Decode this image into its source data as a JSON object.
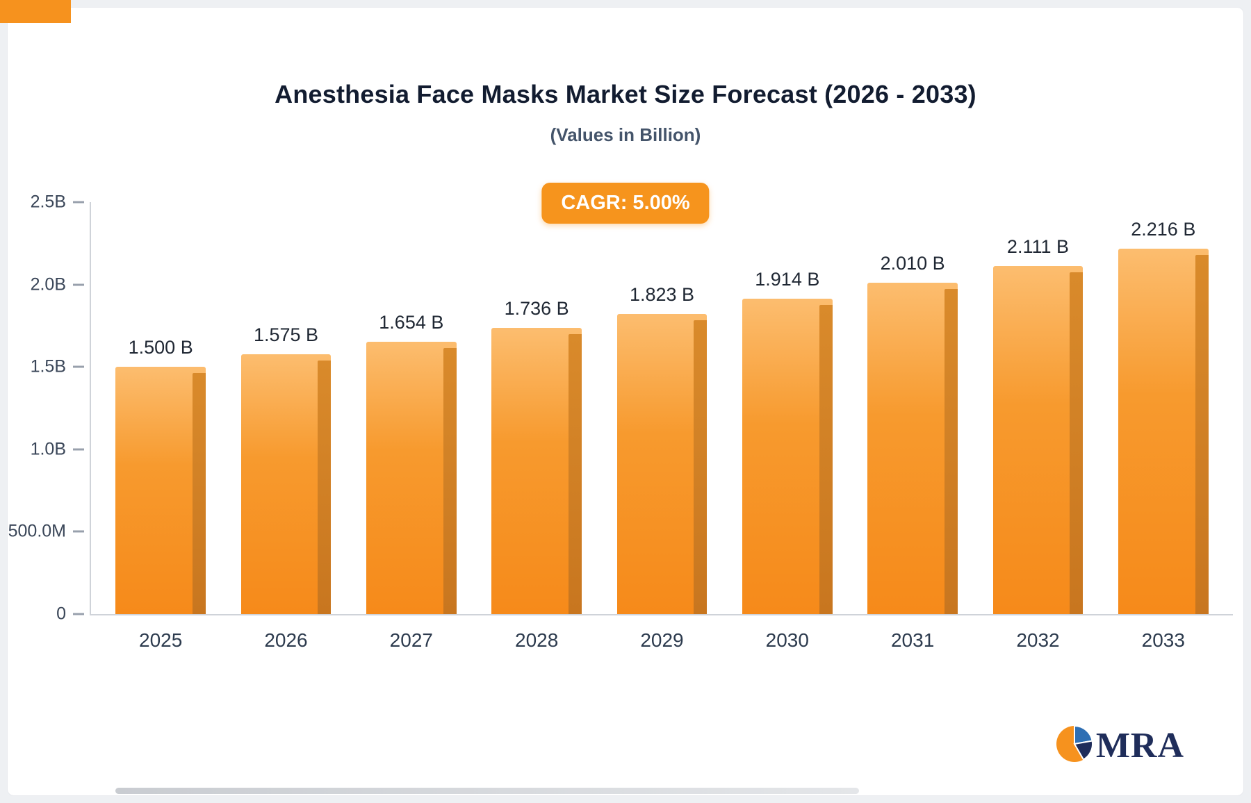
{
  "page": {
    "title": "Anesthesia Face Masks Market Size Forecast (2026 - 2033)",
    "subtitle": "(Values in Billion)",
    "cagr_badge": "CAGR: 5.00%",
    "brand": {
      "name": "MRA",
      "logo_icon": "pie-chart-icon"
    }
  },
  "colors": {
    "accent_orange": "#F6941D",
    "bar_face_top": "#FCBD6F",
    "bar_face_bottom": "#F68A1A",
    "bar_side": "#C8761F",
    "title_text": "#121C30",
    "subtitle_text": "#44546A",
    "axis_text": "#3A4658",
    "brand_navy": "#1F2D5A",
    "brand_blue": "#2F6FB3"
  },
  "chart_data": {
    "type": "bar",
    "title": "Anesthesia Face Masks Market Size Forecast (2026 - 2033)",
    "subtitle": "(Values in Billion)",
    "categories": [
      "2025",
      "2026",
      "2027",
      "2028",
      "2029",
      "2030",
      "2031",
      "2032",
      "2033"
    ],
    "values": [
      1.5,
      1.575,
      1.654,
      1.736,
      1.823,
      1.914,
      2.01,
      2.111,
      2.216
    ],
    "value_labels": [
      "1.500 B",
      "1.575 B",
      "1.654 B",
      "1.736 B",
      "1.823 B",
      "1.914 B",
      "2.010 B",
      "2.111 B",
      "2.216 B"
    ],
    "unit": "Billion",
    "xlabel": "",
    "ylabel": "",
    "ylim": [
      0,
      2.5
    ],
    "y_ticks": [
      "2.5B",
      "2.0B",
      "1.5B",
      "1.0B",
      "500.0M",
      "0"
    ],
    "y_tick_values": [
      2.5,
      2.0,
      1.5,
      1.0,
      0.5,
      0
    ],
    "grid": false,
    "legend": false,
    "annotation": "CAGR: 5.00%"
  }
}
